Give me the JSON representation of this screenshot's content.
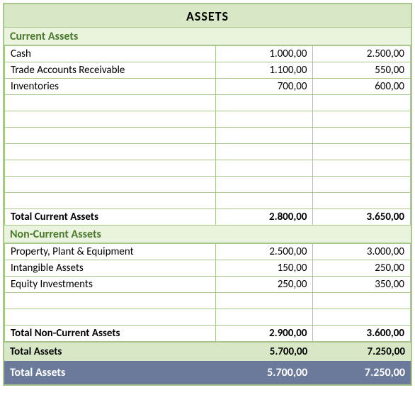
{
  "title": "ASSETS",
  "sections": {
    "current": {
      "heading": "Current Assets",
      "rows": [
        {
          "label": "Cash",
          "v1": "1.000,00",
          "v2": "2.500,00"
        },
        {
          "label": "Trade Accounts Receivable",
          "v1": "1.100,00",
          "v2": "550,00"
        },
        {
          "label": "Inventories",
          "v1": "700,00",
          "v2": "600,00"
        }
      ],
      "blank_rows": 7,
      "subtotal": {
        "label": "Total Current Assets",
        "v1": "2.800,00",
        "v2": "3.650,00"
      }
    },
    "noncurrent": {
      "heading": "Non-Current Assets",
      "rows": [
        {
          "label": "Property, Plant & Equipment",
          "v1": "2.500,00",
          "v2": "3.000,00"
        },
        {
          "label": "Intangible Assets",
          "v1": "150,00",
          "v2": "250,00"
        },
        {
          "label": "Equity Investments",
          "v1": "250,00",
          "v2": "350,00"
        }
      ],
      "blank_rows": 2,
      "subtotal": {
        "label": "Total Non-Current Assets",
        "v1": "2.900,00",
        "v2": "3.600,00"
      }
    }
  },
  "totals": {
    "green": {
      "label": "Total Assets",
      "v1": "5.700,00",
      "v2": "7.250,00"
    },
    "blue": {
      "label": "Total Assets",
      "v1": "5.700,00",
      "v2": "7.250,00"
    }
  },
  "style": {
    "border_color": "#a8c78a",
    "header_bg": "#d8e8c6",
    "section_bg": "#eaf3de",
    "section_text": "#4a7a2a",
    "blue_bg": "#6b7a9a",
    "blue_text": "#ffffff"
  }
}
